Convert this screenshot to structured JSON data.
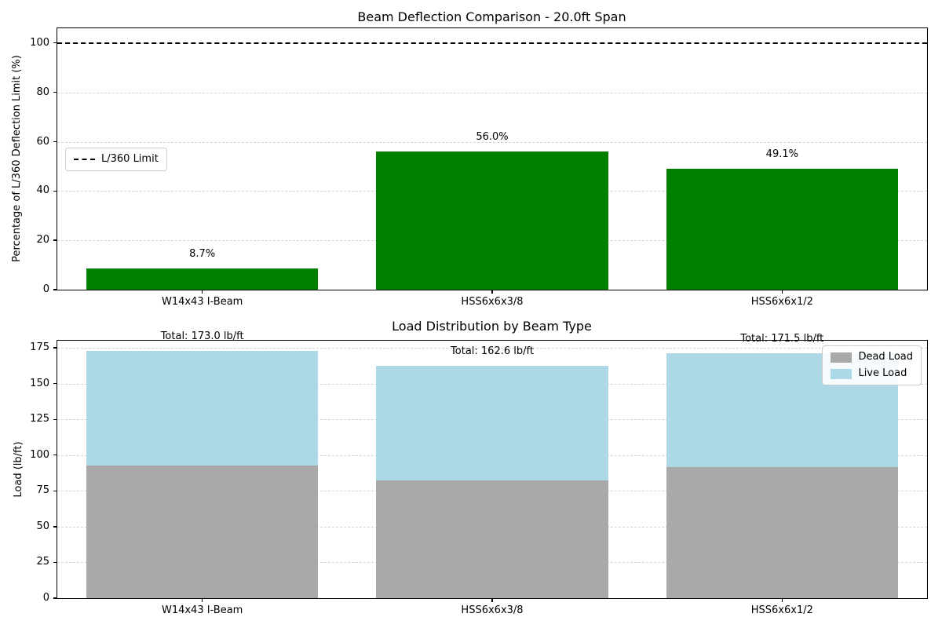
{
  "figure": {
    "background": "#ffffff",
    "grid_color": "#d4d4d4",
    "spine_color": "#000000"
  },
  "chart_data": [
    {
      "type": "bar",
      "title": "Beam Deflection Comparison - 20.0ft Span",
      "ylabel": "Percentage of L/360 Deflection Limit (%)",
      "categories": [
        "W14x43 I-Beam",
        "HSS6x6x3/8",
        "HSS6x6x1/2"
      ],
      "values": [
        8.7,
        56.0,
        49.1
      ],
      "bar_labels": [
        "8.7%",
        "56.0%",
        "49.1%"
      ],
      "bar_color": "#008000",
      "yticks": [
        0,
        20,
        40,
        60,
        80,
        100
      ],
      "ylim": [
        0,
        106
      ],
      "grid": true,
      "reference_line": {
        "value": 100,
        "color": "#000000",
        "style": "dashed"
      },
      "legend_label": "L/360 Limit",
      "legend_position": "center-left"
    },
    {
      "type": "stacked-bar",
      "title": "Load Distribution by Beam Type",
      "ylabel": "Load (lb/ft)",
      "categories": [
        "W14x43 I-Beam",
        "HSS6x6x3/8",
        "HSS6x6x1/2"
      ],
      "series": [
        {
          "name": "Dead Load",
          "color": "#a9a9a9",
          "values": [
            93.0,
            82.6,
            91.5
          ]
        },
        {
          "name": "Live Load",
          "color": "#add8e6",
          "values": [
            80.0,
            80.0,
            80.0
          ]
        }
      ],
      "totals": [
        173.0,
        162.6,
        171.5
      ],
      "total_labels": [
        "Total: 173.0 lb/ft",
        "Total: 162.6 lb/ft",
        "Total: 171.5 lb/ft"
      ],
      "yticks": [
        0,
        25,
        50,
        75,
        100,
        125,
        150,
        175
      ],
      "ylim": [
        0,
        180
      ],
      "grid": true,
      "legend_position": "top-right"
    }
  ]
}
